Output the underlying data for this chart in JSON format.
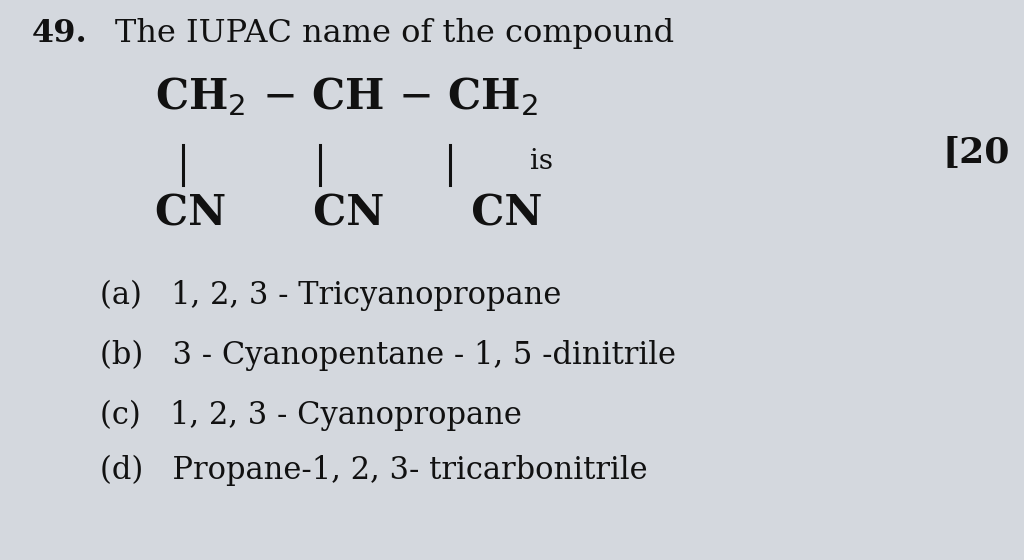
{
  "background_color": "#d4d8de",
  "question_number": "49.",
  "question_text": "The IUPAC name of the compound",
  "is_text": "is",
  "bracket_text": "[20",
  "options": [
    "(a)   1, 2, 3 - Tricyanopropane",
    "(b)   3 - Cyanopentane - 1, 5 -dinitrile",
    "(c)   1, 2, 3 - Cyanopropane",
    "(d)   Propane-1, 2, 3- tricarbonitrile"
  ],
  "title_fontsize": 23,
  "compound_fontsize": 30,
  "option_fontsize": 22,
  "is_fontsize": 20,
  "bracket_fontsize": 26,
  "text_color": "#111111",
  "font_family": "serif"
}
